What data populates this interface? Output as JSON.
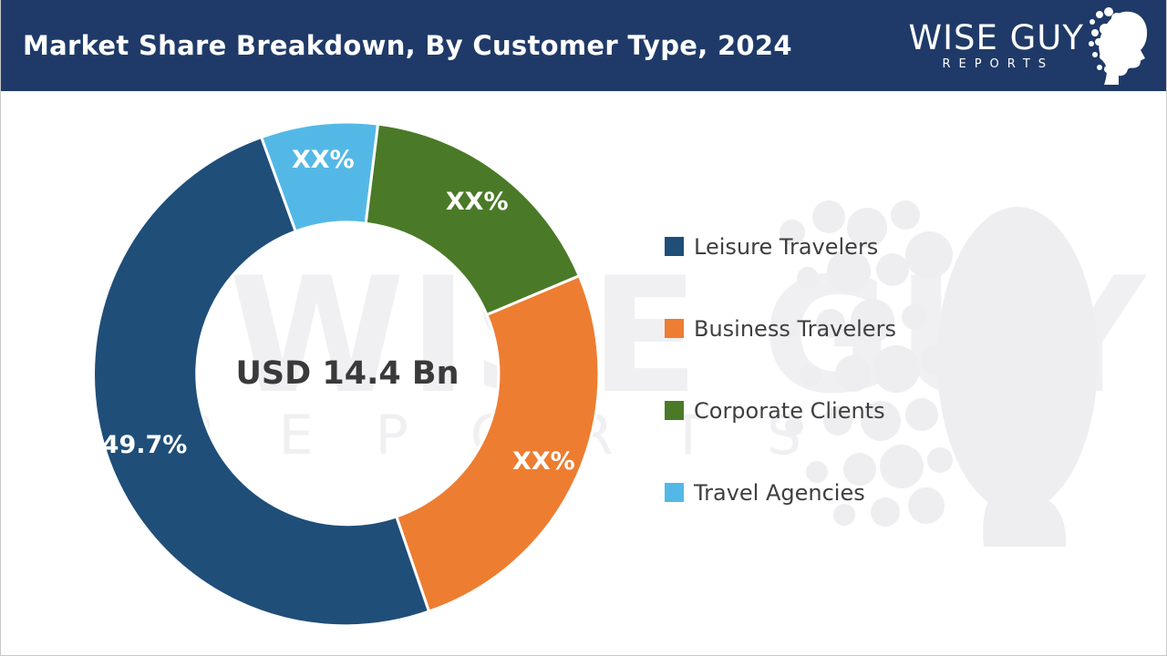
{
  "chart_data": {
    "type": "donut",
    "title": "Market Share Breakdown, By Customer Type, 2024",
    "center_label": "USD 14.4 Bn",
    "start_angle_deg": -20,
    "direction": "clockwise",
    "donut_hole_ratio": 0.6,
    "segments": [
      {
        "name": "Travel Agencies",
        "pct": 7.5,
        "label": "XX%",
        "color": "#54b8e6"
      },
      {
        "name": "Corporate Clients",
        "pct": 16.7,
        "label": "XX%",
        "color": "#4a7a28"
      },
      {
        "name": "Business Travelers",
        "pct": 26.1,
        "label": "XX%",
        "color": "#ed7d31"
      },
      {
        "name": "Leisure Travelers",
        "pct": 49.7,
        "label": "49.7%",
        "color": "#1f4e79"
      }
    ],
    "legend_position": "right"
  },
  "legend": {
    "items": [
      {
        "label": "Leisure Travelers",
        "color": "#1f4e79"
      },
      {
        "label": "Business Travelers",
        "color": "#ed7d31"
      },
      {
        "label": "Corporate Clients",
        "color": "#4a7a28"
      },
      {
        "label": "Travel Agencies",
        "color": "#54b8e6"
      }
    ]
  },
  "brand": {
    "logo_line1": "WISE GUY",
    "logo_line2": "REPORTS"
  },
  "watermark": {
    "line1": "WISE GUY",
    "line2": "REPORTS"
  },
  "colors": {
    "header_bg": "#1f3a68",
    "title_text": "#ffffff",
    "center_text": "#3a3a3a",
    "legend_text": "#3f3f3f",
    "watermark": "#f0f0f3"
  }
}
